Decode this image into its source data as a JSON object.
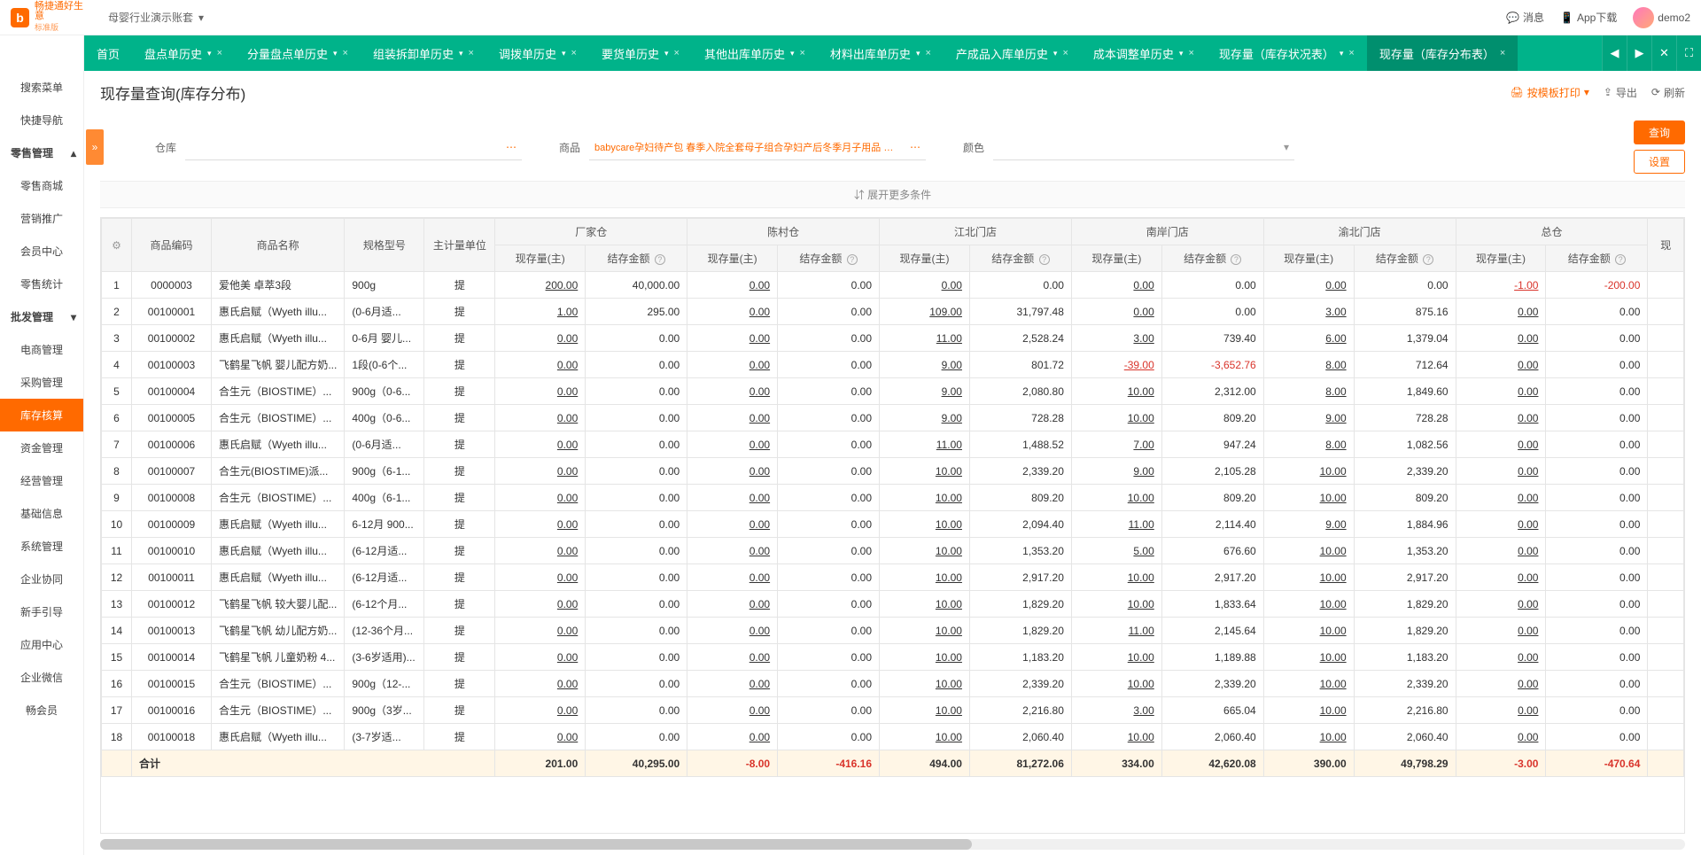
{
  "topbar": {
    "brand": "畅捷通好生意",
    "brand_sub": "标准版",
    "account": "母婴行业演示账套",
    "msg": "消息",
    "app": "App下载",
    "user": "demo2"
  },
  "tabs": [
    {
      "label": "首页",
      "closable": false
    },
    {
      "label": "盘点单历史",
      "closable": true
    },
    {
      "label": "分量盘点单历史",
      "closable": true
    },
    {
      "label": "组装拆卸单历史",
      "closable": true
    },
    {
      "label": "调拨单历史",
      "closable": true
    },
    {
      "label": "要货单历史",
      "closable": true
    },
    {
      "label": "其他出库单历史",
      "closable": true
    },
    {
      "label": "材料出库单历史",
      "closable": true
    },
    {
      "label": "产成品入库单历史",
      "closable": true
    },
    {
      "label": "成本调整单历史",
      "closable": true
    },
    {
      "label": "现存量（库存状况表）",
      "closable": true
    },
    {
      "label": "现存量（库存分布表）",
      "closable": true,
      "active": true
    }
  ],
  "sidebar": [
    {
      "label": "搜索菜单"
    },
    {
      "label": "快捷导航"
    },
    {
      "label": "零售管理",
      "group": true,
      "open": true
    },
    {
      "label": "零售商城"
    },
    {
      "label": "营销推广"
    },
    {
      "label": "会员中心"
    },
    {
      "label": "零售统计"
    },
    {
      "label": "批发管理",
      "group": true
    },
    {
      "label": "电商管理"
    },
    {
      "label": "采购管理"
    },
    {
      "label": "库存核算",
      "active": true
    },
    {
      "label": "资金管理"
    },
    {
      "label": "经营管理"
    },
    {
      "label": "基础信息"
    },
    {
      "label": "系统管理"
    },
    {
      "label": "企业协同"
    },
    {
      "label": "新手引导"
    },
    {
      "label": "应用中心"
    },
    {
      "label": "企业微信"
    },
    {
      "label": "畅会员"
    }
  ],
  "page": {
    "title": "现存量查询(库存分布)",
    "print": "按模板打印",
    "export": "导出",
    "refresh": "刷新"
  },
  "filters": {
    "warehouse_label": "仓库",
    "product_label": "商品",
    "product_value": "babycare孕妇待产包 春季入院全套母子组合孕妇产后冬季月子用品 22件套 >…",
    "color_label": "颜色",
    "query": "查询",
    "settings": "设置",
    "expand": "展开更多条件"
  },
  "table": {
    "fixed_headers": [
      "",
      "商品编码",
      "商品名称",
      "规格型号",
      "主计量单位"
    ],
    "gear": "⚙",
    "warehouses": [
      "厂家仓",
      "陈村仓",
      "江北门店",
      "南岸门店",
      "渝北门店",
      "总仓"
    ],
    "sub_qty": "现存量(主)",
    "sub_amt": "结存金额",
    "extra_col": "现",
    "rows": [
      {
        "n": 1,
        "code": "0000003",
        "name": "爱他美 卓萃3段",
        "spec": "900g",
        "unit": "提",
        "vals": [
          [
            "200.00",
            "40,000.00"
          ],
          [
            "0.00",
            "0.00"
          ],
          [
            "0.00",
            "0.00"
          ],
          [
            "0.00",
            "0.00"
          ],
          [
            "0.00",
            "0.00"
          ],
          [
            "-1.00",
            "-200.00"
          ]
        ]
      },
      {
        "n": 2,
        "code": "00100001",
        "name": "惠氏启赋（Wyeth illu...",
        "spec": "(0-6月适...",
        "unit": "提",
        "vals": [
          [
            "1.00",
            "295.00"
          ],
          [
            "0.00",
            "0.00"
          ],
          [
            "109.00",
            "31,797.48"
          ],
          [
            "0.00",
            "0.00"
          ],
          [
            "3.00",
            "875.16"
          ],
          [
            "0.00",
            "0.00"
          ]
        ]
      },
      {
        "n": 3,
        "code": "00100002",
        "name": "惠氏启赋（Wyeth illu...",
        "spec": "0-6月 婴儿...",
        "unit": "提",
        "vals": [
          [
            "0.00",
            "0.00"
          ],
          [
            "0.00",
            "0.00"
          ],
          [
            "11.00",
            "2,528.24"
          ],
          [
            "3.00",
            "739.40"
          ],
          [
            "6.00",
            "1,379.04"
          ],
          [
            "0.00",
            "0.00"
          ]
        ]
      },
      {
        "n": 4,
        "code": "00100003",
        "name": "飞鹤星飞帆 婴儿配方奶...",
        "spec": "1段(0-6个...",
        "unit": "提",
        "vals": [
          [
            "0.00",
            "0.00"
          ],
          [
            "0.00",
            "0.00"
          ],
          [
            "9.00",
            "801.72"
          ],
          [
            "-39.00",
            "-3,652.76"
          ],
          [
            "8.00",
            "712.64"
          ],
          [
            "0.00",
            "0.00"
          ]
        ]
      },
      {
        "n": 5,
        "code": "00100004",
        "name": "合生元（BIOSTIME）...",
        "spec": "900g（0-6...",
        "unit": "提",
        "vals": [
          [
            "0.00",
            "0.00"
          ],
          [
            "0.00",
            "0.00"
          ],
          [
            "9.00",
            "2,080.80"
          ],
          [
            "10.00",
            "2,312.00"
          ],
          [
            "8.00",
            "1,849.60"
          ],
          [
            "0.00",
            "0.00"
          ]
        ]
      },
      {
        "n": 6,
        "code": "00100005",
        "name": "合生元（BIOSTIME）...",
        "spec": "400g（0-6...",
        "unit": "提",
        "vals": [
          [
            "0.00",
            "0.00"
          ],
          [
            "0.00",
            "0.00"
          ],
          [
            "9.00",
            "728.28"
          ],
          [
            "10.00",
            "809.20"
          ],
          [
            "9.00",
            "728.28"
          ],
          [
            "0.00",
            "0.00"
          ]
        ]
      },
      {
        "n": 7,
        "code": "00100006",
        "name": "惠氏启赋（Wyeth illu...",
        "spec": "(0-6月适...",
        "unit": "提",
        "vals": [
          [
            "0.00",
            "0.00"
          ],
          [
            "0.00",
            "0.00"
          ],
          [
            "11.00",
            "1,488.52"
          ],
          [
            "7.00",
            "947.24"
          ],
          [
            "8.00",
            "1,082.56"
          ],
          [
            "0.00",
            "0.00"
          ]
        ]
      },
      {
        "n": 8,
        "code": "00100007",
        "name": "合生元(BIOSTIME)派...",
        "spec": "900g（6-1...",
        "unit": "提",
        "vals": [
          [
            "0.00",
            "0.00"
          ],
          [
            "0.00",
            "0.00"
          ],
          [
            "10.00",
            "2,339.20"
          ],
          [
            "9.00",
            "2,105.28"
          ],
          [
            "10.00",
            "2,339.20"
          ],
          [
            "0.00",
            "0.00"
          ]
        ]
      },
      {
        "n": 9,
        "code": "00100008",
        "name": "合生元（BIOSTIME）...",
        "spec": "400g（6-1...",
        "unit": "提",
        "vals": [
          [
            "0.00",
            "0.00"
          ],
          [
            "0.00",
            "0.00"
          ],
          [
            "10.00",
            "809.20"
          ],
          [
            "10.00",
            "809.20"
          ],
          [
            "10.00",
            "809.20"
          ],
          [
            "0.00",
            "0.00"
          ]
        ]
      },
      {
        "n": 10,
        "code": "00100009",
        "name": "惠氏启赋（Wyeth illu...",
        "spec": "6-12月 900...",
        "unit": "提",
        "vals": [
          [
            "0.00",
            "0.00"
          ],
          [
            "0.00",
            "0.00"
          ],
          [
            "10.00",
            "2,094.40"
          ],
          [
            "11.00",
            "2,114.40"
          ],
          [
            "9.00",
            "1,884.96"
          ],
          [
            "0.00",
            "0.00"
          ]
        ]
      },
      {
        "n": 11,
        "code": "00100010",
        "name": "惠氏启赋（Wyeth illu...",
        "spec": "(6-12月适...",
        "unit": "提",
        "vals": [
          [
            "0.00",
            "0.00"
          ],
          [
            "0.00",
            "0.00"
          ],
          [
            "10.00",
            "1,353.20"
          ],
          [
            "5.00",
            "676.60"
          ],
          [
            "10.00",
            "1,353.20"
          ],
          [
            "0.00",
            "0.00"
          ]
        ]
      },
      {
        "n": 12,
        "code": "00100011",
        "name": "惠氏启赋（Wyeth illu...",
        "spec": "(6-12月适...",
        "unit": "提",
        "vals": [
          [
            "0.00",
            "0.00"
          ],
          [
            "0.00",
            "0.00"
          ],
          [
            "10.00",
            "2,917.20"
          ],
          [
            "10.00",
            "2,917.20"
          ],
          [
            "10.00",
            "2,917.20"
          ],
          [
            "0.00",
            "0.00"
          ]
        ]
      },
      {
        "n": 13,
        "code": "00100012",
        "name": "飞鹤星飞帆 较大婴儿配...",
        "spec": "(6-12个月...",
        "unit": "提",
        "vals": [
          [
            "0.00",
            "0.00"
          ],
          [
            "0.00",
            "0.00"
          ],
          [
            "10.00",
            "1,829.20"
          ],
          [
            "10.00",
            "1,833.64"
          ],
          [
            "10.00",
            "1,829.20"
          ],
          [
            "0.00",
            "0.00"
          ]
        ]
      },
      {
        "n": 14,
        "code": "00100013",
        "name": "飞鹤星飞帆 幼儿配方奶...",
        "spec": "(12-36个月...",
        "unit": "提",
        "vals": [
          [
            "0.00",
            "0.00"
          ],
          [
            "0.00",
            "0.00"
          ],
          [
            "10.00",
            "1,829.20"
          ],
          [
            "11.00",
            "2,145.64"
          ],
          [
            "10.00",
            "1,829.20"
          ],
          [
            "0.00",
            "0.00"
          ]
        ]
      },
      {
        "n": 15,
        "code": "00100014",
        "name": "飞鹤星飞帆 儿童奶粉 4...",
        "spec": "(3-6岁适用)...",
        "unit": "提",
        "vals": [
          [
            "0.00",
            "0.00"
          ],
          [
            "0.00",
            "0.00"
          ],
          [
            "10.00",
            "1,183.20"
          ],
          [
            "10.00",
            "1,189.88"
          ],
          [
            "10.00",
            "1,183.20"
          ],
          [
            "0.00",
            "0.00"
          ]
        ]
      },
      {
        "n": 16,
        "code": "00100015",
        "name": "合生元（BIOSTIME）...",
        "spec": "900g（12-...",
        "unit": "提",
        "vals": [
          [
            "0.00",
            "0.00"
          ],
          [
            "0.00",
            "0.00"
          ],
          [
            "10.00",
            "2,339.20"
          ],
          [
            "10.00",
            "2,339.20"
          ],
          [
            "10.00",
            "2,339.20"
          ],
          [
            "0.00",
            "0.00"
          ]
        ]
      },
      {
        "n": 17,
        "code": "00100016",
        "name": "合生元（BIOSTIME）...",
        "spec": "900g（3岁...",
        "unit": "提",
        "vals": [
          [
            "0.00",
            "0.00"
          ],
          [
            "0.00",
            "0.00"
          ],
          [
            "10.00",
            "2,216.80"
          ],
          [
            "3.00",
            "665.04"
          ],
          [
            "10.00",
            "2,216.80"
          ],
          [
            "0.00",
            "0.00"
          ]
        ]
      },
      {
        "n": 18,
        "code": "00100018",
        "name": "惠氏启赋（Wyeth illu...",
        "spec": "(3-7岁适...",
        "unit": "提",
        "vals": [
          [
            "0.00",
            "0.00"
          ],
          [
            "0.00",
            "0.00"
          ],
          [
            "10.00",
            "2,060.40"
          ],
          [
            "10.00",
            "2,060.40"
          ],
          [
            "10.00",
            "2,060.40"
          ],
          [
            "0.00",
            "0.00"
          ]
        ]
      }
    ],
    "total_label": "合计",
    "totals": [
      [
        "201.00",
        "40,295.00"
      ],
      [
        "-8.00",
        "-416.16"
      ],
      [
        "494.00",
        "81,272.06"
      ],
      [
        "334.00",
        "42,620.08"
      ],
      [
        "390.00",
        "49,798.29"
      ],
      [
        "-3.00",
        "-470.64"
      ]
    ]
  },
  "colors": {
    "primary": "#00b38a",
    "accent": "#ff6a00",
    "neg": "#d9342b"
  }
}
